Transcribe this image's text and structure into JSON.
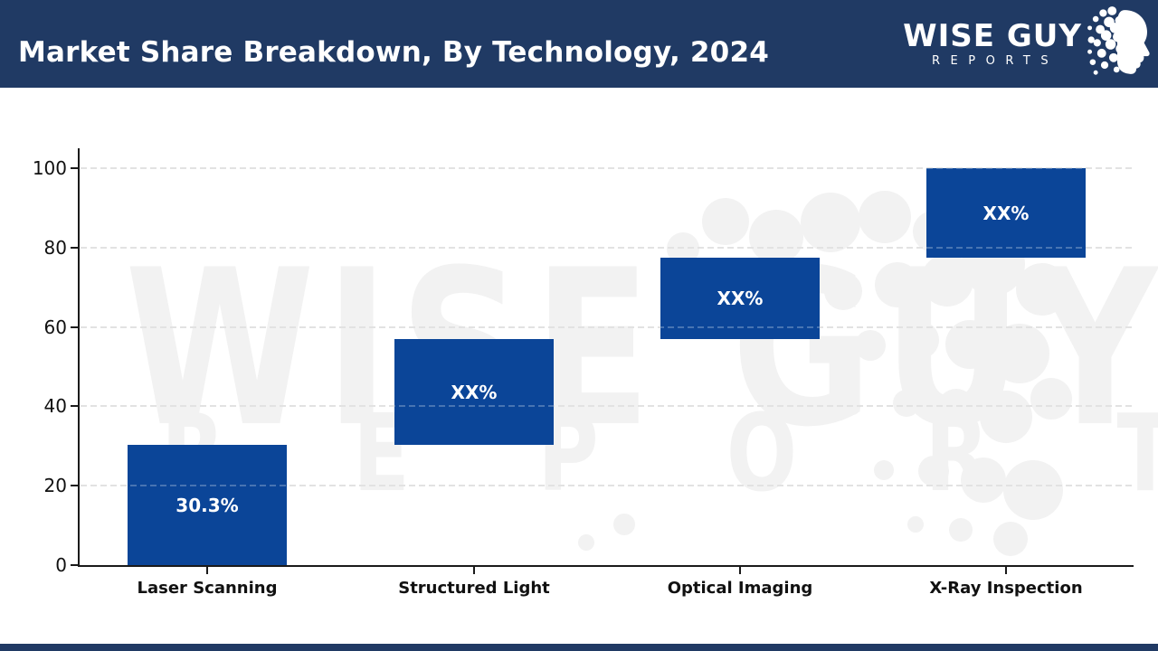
{
  "header": {
    "title": "Market Share Breakdown, By Technology, 2024",
    "bg_color": "#203A64",
    "logo": {
      "line1": "WISE GUY",
      "line2": "REPORTS"
    }
  },
  "watermark": {
    "line1": "WISE GUY",
    "line2": "R E P O R T S"
  },
  "footer": {
    "bg_color": "#203A64"
  },
  "chart_data": {
    "type": "bar",
    "variant": "waterfall",
    "title": "Market Share Breakdown, By Technology, 2024",
    "categories": [
      "Laser Scanning",
      "Structured Light",
      "Optical Imaging",
      "X-Ray Inspection"
    ],
    "segments": [
      [
        0,
        30.3
      ],
      [
        30.3,
        57.0
      ],
      [
        57.0,
        77.5
      ],
      [
        77.5,
        100.0
      ]
    ],
    "increments": [
      30.3,
      26.7,
      20.5,
      22.5
    ],
    "bar_labels": [
      "30.3%",
      "XX%",
      "XX%",
      "XX%"
    ],
    "yticks": [
      0,
      20,
      40,
      60,
      80,
      100
    ],
    "ylim": [
      0,
      105
    ],
    "xlabel": "",
    "ylabel": "",
    "legend": "none",
    "grid": "horizontal-dashed",
    "bar_color": "#0B4598",
    "bar_label_color": "#FFFFFF",
    "axis_color": "#1A1A1A",
    "grid_color": "#D9D9D9"
  }
}
